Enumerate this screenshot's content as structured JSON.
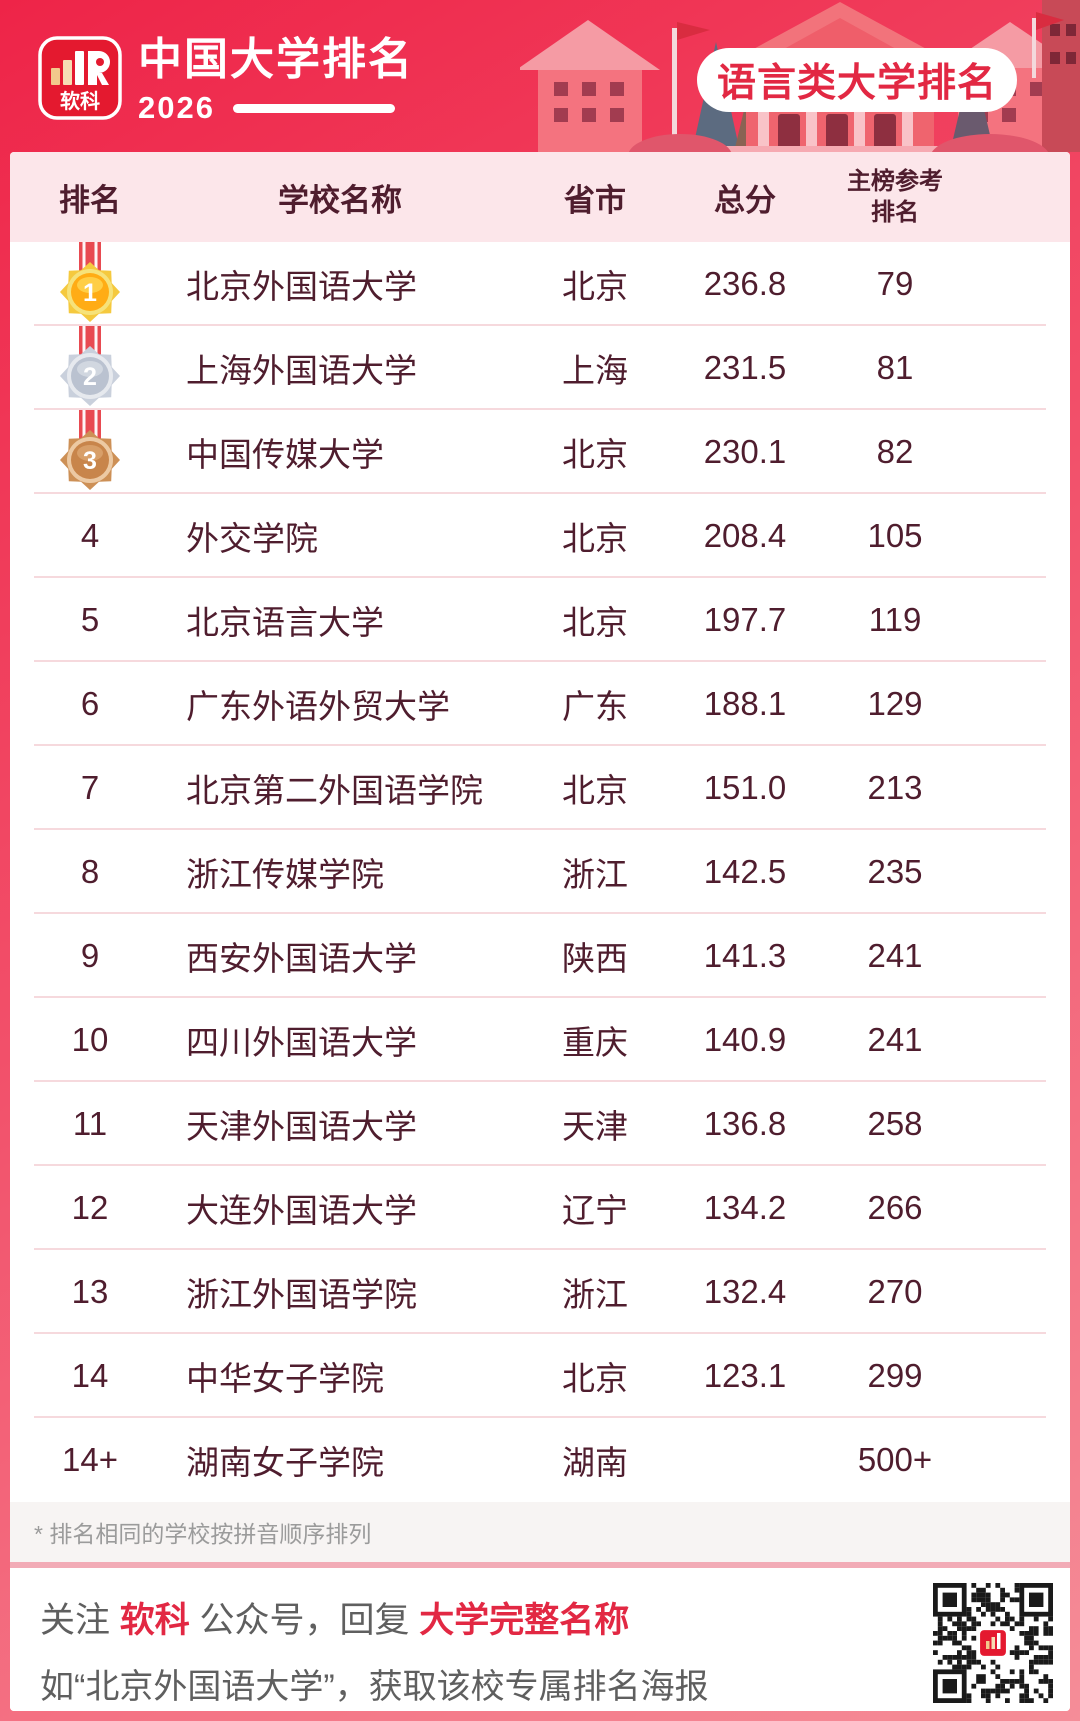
{
  "header": {
    "logo_text": "软科",
    "title": "中国大学排名",
    "year": "2026",
    "badge": "语言类大学排名"
  },
  "table": {
    "columns": {
      "rank": "排名",
      "school": "学校名称",
      "province": "省市",
      "score": "总分",
      "ref_line1": "主榜参考",
      "ref_line2": "排名"
    }
  },
  "chart_data": {
    "type": "table",
    "title": "2026 中国大学排名 — 语言类大学排名",
    "columns": [
      "排名",
      "学校名称",
      "省市",
      "总分",
      "主榜参考排名"
    ],
    "records": [
      {
        "rank": "1",
        "medal": "gold",
        "name": "北京外国语大学",
        "province": "北京",
        "score": "236.8",
        "ref": "79"
      },
      {
        "rank": "2",
        "medal": "silver",
        "name": "上海外国语大学",
        "province": "上海",
        "score": "231.5",
        "ref": "81"
      },
      {
        "rank": "3",
        "medal": "bronze",
        "name": "中国传媒大学",
        "province": "北京",
        "score": "230.1",
        "ref": "82"
      },
      {
        "rank": "4",
        "name": "外交学院",
        "province": "北京",
        "score": "208.4",
        "ref": "105"
      },
      {
        "rank": "5",
        "name": "北京语言大学",
        "province": "北京",
        "score": "197.7",
        "ref": "119"
      },
      {
        "rank": "6",
        "name": "广东外语外贸大学",
        "province": "广东",
        "score": "188.1",
        "ref": "129"
      },
      {
        "rank": "7",
        "name": "北京第二外国语学院",
        "province": "北京",
        "score": "151.0",
        "ref": "213"
      },
      {
        "rank": "8",
        "name": "浙江传媒学院",
        "province": "浙江",
        "score": "142.5",
        "ref": "235"
      },
      {
        "rank": "9",
        "name": "西安外国语大学",
        "province": "陕西",
        "score": "141.3",
        "ref": "241"
      },
      {
        "rank": "10",
        "name": "四川外国语大学",
        "province": "重庆",
        "score": "140.9",
        "ref": "241"
      },
      {
        "rank": "11",
        "name": "天津外国语大学",
        "province": "天津",
        "score": "136.8",
        "ref": "258"
      },
      {
        "rank": "12",
        "name": "大连外国语大学",
        "province": "辽宁",
        "score": "134.2",
        "ref": "266"
      },
      {
        "rank": "13",
        "name": "浙江外国语学院",
        "province": "浙江",
        "score": "132.4",
        "ref": "270"
      },
      {
        "rank": "14",
        "name": "中华女子学院",
        "province": "北京",
        "score": "123.1",
        "ref": "299"
      },
      {
        "rank": "14+",
        "name": "湖南女子学院",
        "province": "湖南",
        "score": "",
        "ref": "500+"
      }
    ]
  },
  "footnote": "* 排名相同的学校按拼音顺序排列",
  "footer": {
    "line1": [
      {
        "text": "关注 ",
        "style": "gray"
      },
      {
        "text": "软科",
        "style": "red"
      },
      {
        "text": " 公众号，回复 ",
        "style": "gray"
      },
      {
        "text": "大学完整名称",
        "style": "red"
      }
    ],
    "line2": "如“北京外国语大学”，获取该校专属排名海报",
    "qr_icon": "qr-code"
  },
  "colors": {
    "accent_red": "#e22843",
    "page_gradient_top": "#ee2448",
    "page_gradient_bottom": "#f58d98",
    "logo_red": "#e4192f",
    "card_bg": "#ffffff",
    "header_row_bg": "#fce6ea",
    "row_separator": "#f6d9dd",
    "text_maroon": "#4f1d2e",
    "footnote_bg": "#f7f4f3",
    "footnote_text": "#9b9b9b",
    "divider_pink": "#f2abb6",
    "footer_gray": "#5f5f5f",
    "ribbon_red": "#e84a51",
    "medals": {
      "gold": {
        "star": "#f5c93e",
        "ring": "#f6e27a",
        "core": "#ffac15",
        "hi": "#ffd34e"
      },
      "silver": {
        "star": "#c9d0dc",
        "ring": "#e6e9ee",
        "core": "#bac2d0",
        "hi": "#d5dae3"
      },
      "bronze": {
        "star": "#cd9056",
        "ring": "#ecc9a3",
        "core": "#c8854b",
        "hi": "#daa36f"
      }
    }
  }
}
